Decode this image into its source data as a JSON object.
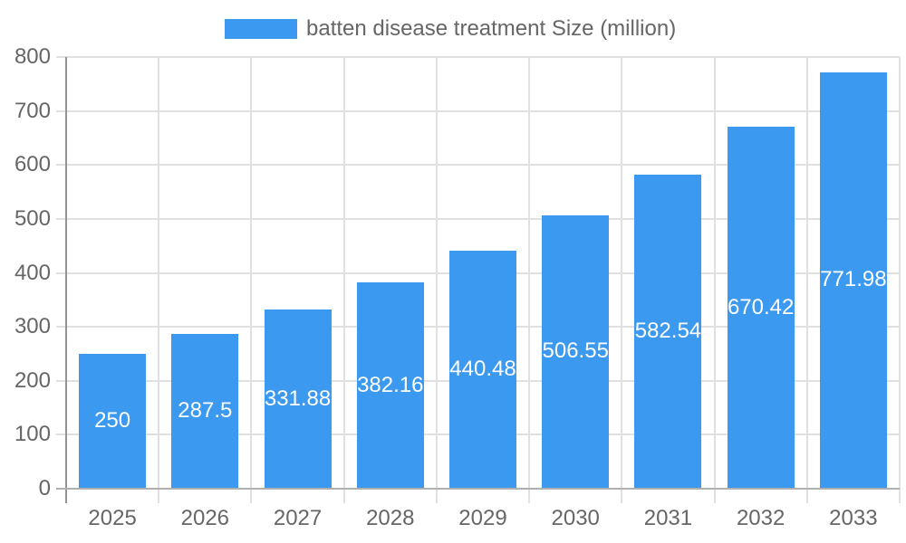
{
  "legend": {
    "label": "batten disease treatment Size (million)"
  },
  "chart_data": {
    "type": "bar",
    "title": "",
    "categories": [
      "2025",
      "2026",
      "2027",
      "2028",
      "2029",
      "2030",
      "2031",
      "2032",
      "2033"
    ],
    "series": [
      {
        "name": "batten disease treatment Size (million)",
        "values": [
          250,
          287.5,
          331.88,
          382.16,
          440.48,
          506.55,
          582.54,
          670.42,
          771.98
        ],
        "value_labels": [
          "250",
          "287.5",
          "331.88",
          "382.16",
          "440.48",
          "506.55",
          "582.54",
          "670.42",
          "771.98"
        ]
      }
    ],
    "xlabel": "",
    "ylabel": "",
    "ylim": [
      0,
      800
    ],
    "yticks": [
      0,
      100,
      200,
      300,
      400,
      500,
      600,
      700,
      800
    ],
    "ytick_labels": [
      "0",
      "100",
      "200",
      "300",
      "400",
      "500",
      "600",
      "700",
      "800"
    ],
    "grid": true,
    "legend_position": "top",
    "value_label_position": "inside-middle"
  },
  "colors": {
    "bar": "#3B99F0",
    "bar_label": "#FFFFFF",
    "axis_text": "#666666",
    "legend_text": "#666666",
    "gridline": "#E0E0E0",
    "y_axis_line": "#949494",
    "x_axis_line": "#B0B0B0",
    "background": "#FFFFFF"
  }
}
